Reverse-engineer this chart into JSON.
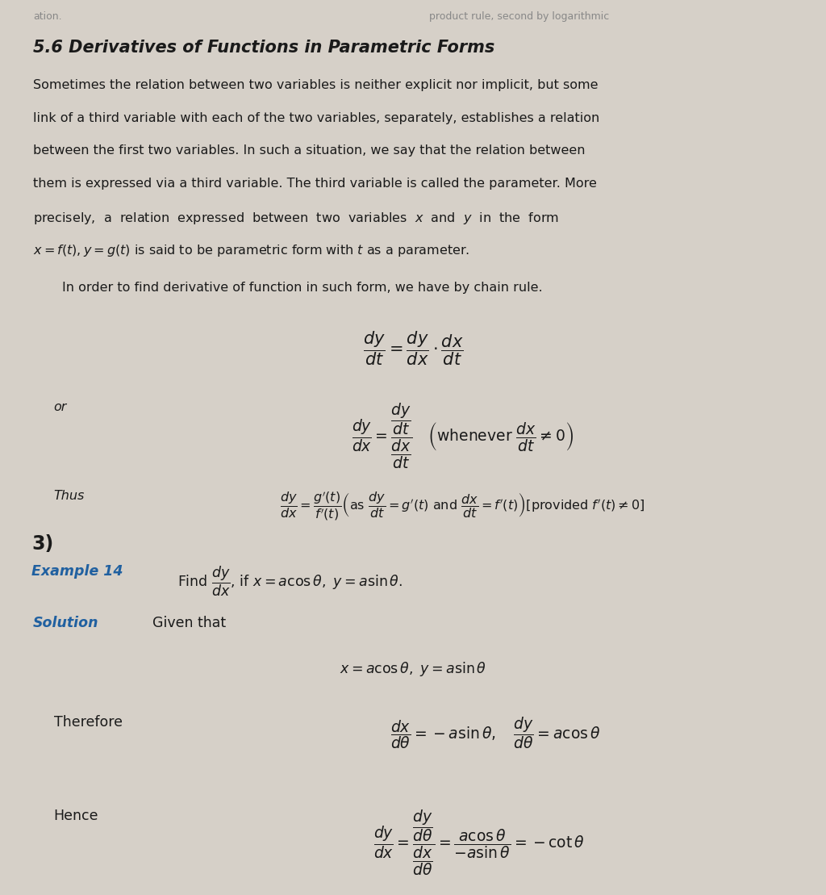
{
  "bg_color": "#d6d0c8",
  "title": "5.6 Derivatives of Functions in Parametric Forms",
  "title_color": "#1a1a1a",
  "title_fontsize": 15,
  "body_fontsize": 11.5,
  "body_color": "#1a1a1a",
  "label_color": "#2060a0",
  "top_left_text": "ation.",
  "top_right_text": "product rule, second by logarithmic",
  "chain_rule_intro": "In order to find derivative of function in such form, we have by chain rule.",
  "eq2_label": "or",
  "eq3_label": "Thus",
  "example_label": "Example 14",
  "example_num_overlay": "3)",
  "solution_label": "Solution",
  "solution_text": "Given that",
  "therefore_label": "Therefore",
  "hence_label": "Hence",
  "body_lines": [
    "Sometimes the relation between two variables is neither explicit nor implicit, but some",
    "link of a third variable with each of the two variables, separately, establishes a relation",
    "between the first two variables. In such a situation, we say that the relation between",
    "them is expressed via a third variable. The third variable is called the parameter. More",
    "precisely,  a  relation  expressed  between  two  variables  $x$  and  $y$  in  the  form",
    "$x = f(t), y = g(t)$ is said to be parametric form with $t$ as a parameter."
  ]
}
